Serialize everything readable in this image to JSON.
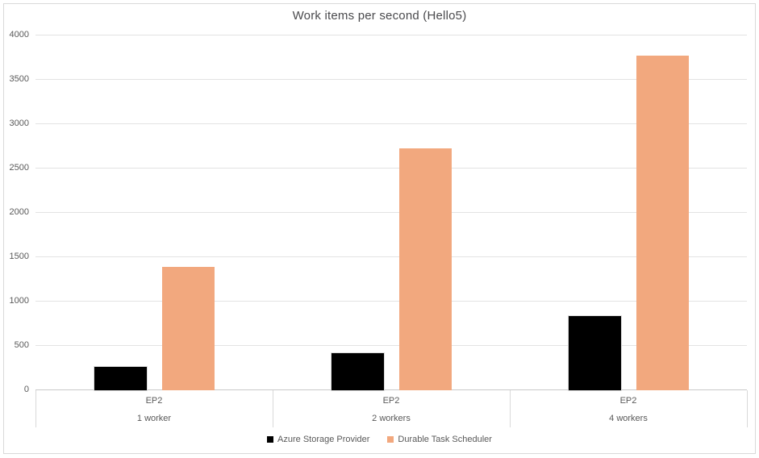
{
  "window": {
    "background": "#ffffff",
    "border_color": "#d9d9d9"
  },
  "chart_data": {
    "type": "bar",
    "title": "Work items per second (Hello5)",
    "categories": [
      "1 worker",
      "2 workers",
      "4 workers"
    ],
    "category_groups": [
      {
        "plan": "EP2",
        "workers": "1 worker"
      },
      {
        "plan": "EP2",
        "workers": "2 workers"
      },
      {
        "plan": "EP2",
        "workers": "4 workers"
      }
    ],
    "series": [
      {
        "name": "Azure Storage Provider",
        "color": "#000000",
        "values": [
          260,
          420,
          840
        ]
      },
      {
        "name": "Durable Task Scheduler",
        "color": "#f2a87e",
        "values": [
          1390,
          2730,
          3770
        ]
      }
    ],
    "xlabel": "",
    "ylabel": "",
    "ylim": [
      0,
      4000
    ],
    "ytick_step": 500,
    "yticks": [
      0,
      500,
      1000,
      1500,
      2000,
      2500,
      3000,
      3500,
      4000
    ],
    "grid": true,
    "legend_position": "bottom",
    "gridline_color": "#e3e3e3",
    "axis_line_color": "#c9c9c9",
    "separator_color": "#d9d9d9",
    "text_color": "#595959",
    "title_color": "#4a4a4d"
  }
}
